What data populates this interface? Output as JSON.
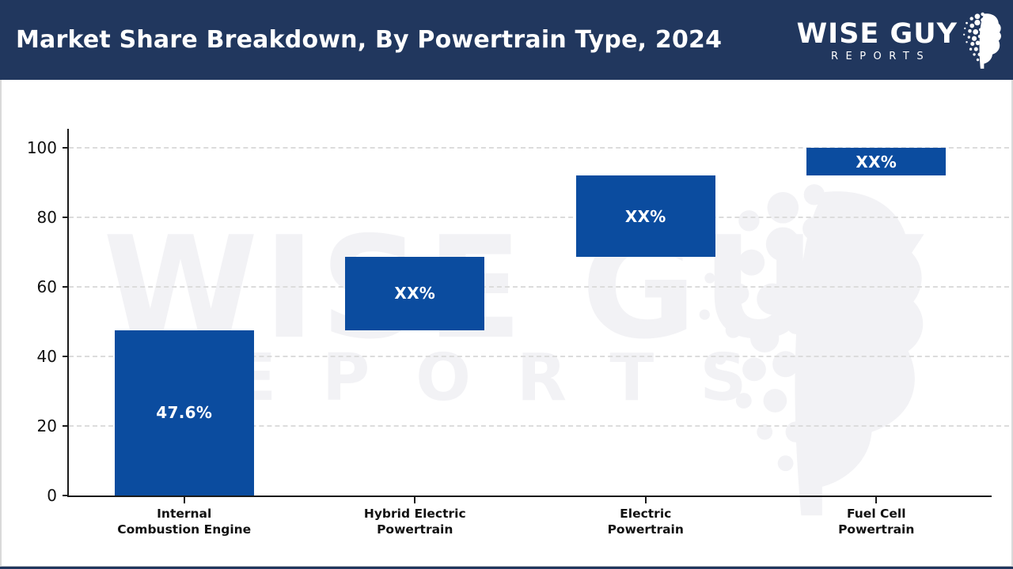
{
  "header": {
    "title": "Market Share Breakdown, By Powertrain Type, 2024"
  },
  "logo": {
    "line1": "WISE GUY",
    "line2": "REPORTS",
    "face_icon": "wiseguy-face-icon"
  },
  "watermark": {
    "line1": "WISE GUY",
    "line2": "REPORTS"
  },
  "colors": {
    "header_bg": "#21375e",
    "bar": "#0b4c9f",
    "bar_label": "#ffffff",
    "grid": "#dcdcdc",
    "axis": "#1a1a1a",
    "watermark": "#f2f2f5",
    "card_border": "#d9d9d9"
  },
  "chart_data": {
    "type": "bar",
    "subtype": "waterfall",
    "title": "Market Share Breakdown, By Powertrain Type, 2024",
    "categories": [
      "Internal Combustion Engine",
      "Hybrid Electric Powertrain",
      "Electric Powertrain",
      "Fuel Cell Powertrain"
    ],
    "category_lines": [
      [
        "Internal",
        "Combustion Engine"
      ],
      [
        "Hybrid Electric",
        "Powertrain"
      ],
      [
        "Electric",
        "Powertrain"
      ],
      [
        "Fuel Cell",
        "Powertrain"
      ]
    ],
    "segments": [
      {
        "base": 0,
        "value": 47.6,
        "label": "47.6%"
      },
      {
        "base": 47.6,
        "value": 21.0,
        "label": "XX%"
      },
      {
        "base": 68.6,
        "value": 23.4,
        "label": "XX%"
      },
      {
        "base": 92.0,
        "value": 8.0,
        "label": "XX%"
      }
    ],
    "ylim": [
      0,
      100
    ],
    "yticks": [
      0,
      20,
      40,
      60,
      80,
      100
    ],
    "xlabel": "",
    "ylabel": "",
    "grid": "dashed-horizontal",
    "legend": "none"
  }
}
